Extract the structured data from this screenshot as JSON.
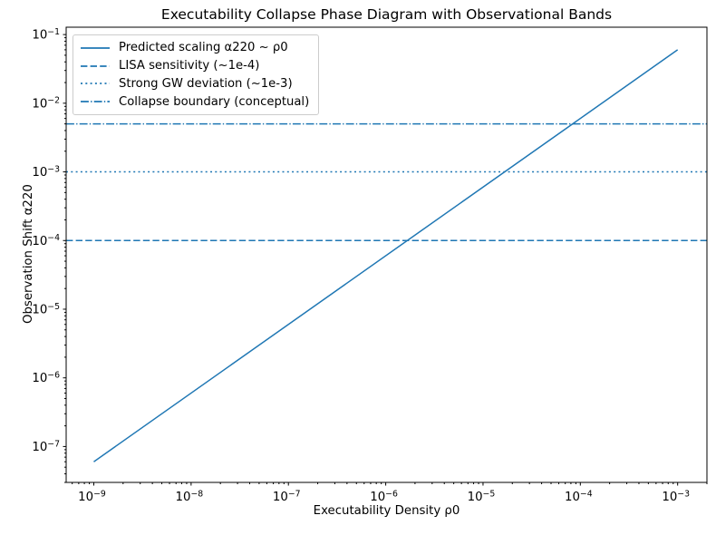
{
  "chart_data": {
    "type": "line",
    "title": "Executability Collapse Phase Diagram with Observational Bands",
    "xlabel": "Executability Density ρ0",
    "ylabel": "Observation Shift α220",
    "x_scale": "log",
    "y_scale": "log",
    "xlim": [
      5.2e-10,
      0.002
    ],
    "ylim": [
      3e-08,
      0.128
    ],
    "x_tick_labels": [
      "1e-9",
      "1e-8",
      "1e-7",
      "1e-6",
      "1e-5",
      "1e-4",
      "1e-3"
    ],
    "y_tick_labels": [
      "1e-7",
      "1e-6",
      "1e-5",
      "1e-4",
      "1e-3",
      "1e-2",
      "1e-1"
    ],
    "x_tick_exponents": [
      -9,
      -8,
      -7,
      -6,
      -5,
      -4,
      -3
    ],
    "y_tick_exponents": [
      -7,
      -6,
      -5,
      -4,
      -3,
      -2,
      -1
    ],
    "grid": false,
    "legend_position": "upper left",
    "line_color": "#1f77b4",
    "series": [
      {
        "name": "Predicted scaling α220 ~ ρ0",
        "kind": "line",
        "linestyle": "solid",
        "color": "#1f77b4",
        "x": [
          1e-09,
          0.001
        ],
        "y": [
          6e-08,
          0.06
        ]
      },
      {
        "name": "LISA sensitivity (~1e-4)",
        "kind": "hline",
        "linestyle": "dashed",
        "color": "#1f77b4",
        "y_const": 0.0001
      },
      {
        "name": "Strong GW deviation (~1e-3)",
        "kind": "hline",
        "linestyle": "dotted",
        "color": "#1f77b4",
        "y_const": 0.001
      },
      {
        "name": "Collapse boundary (conceptual)",
        "kind": "hline",
        "linestyle": "dashdot",
        "color": "#1f77b4",
        "y_const": 0.005
      }
    ]
  }
}
